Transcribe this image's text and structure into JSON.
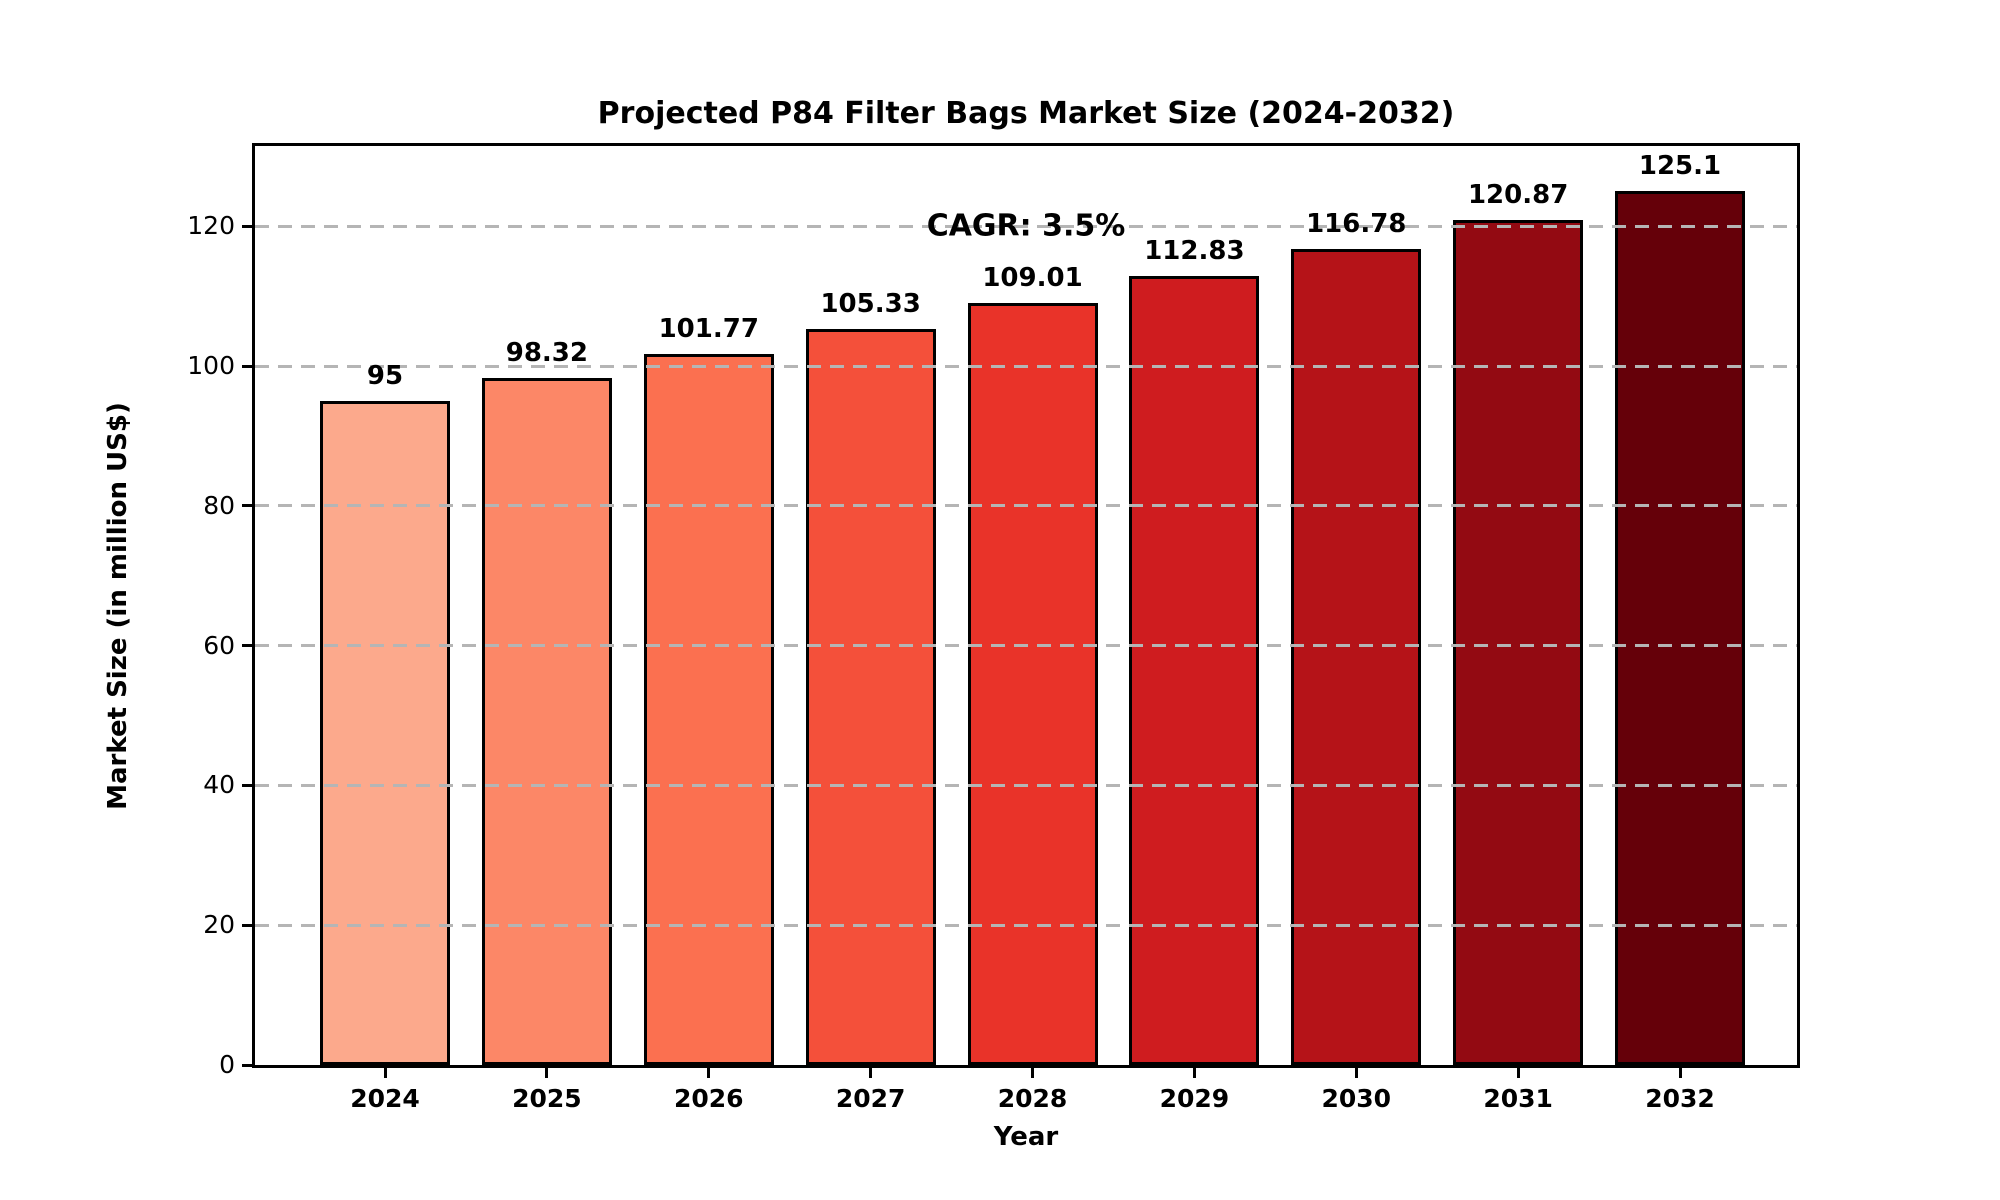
{
  "chart_data": {
    "type": "bar",
    "title": "Projected P84 Filter Bags Market Size (2024-2032)",
    "xlabel": "Year",
    "ylabel": "Market Size (in million US$)",
    "annotation": "CAGR: 3.5%",
    "categories": [
      "2024",
      "2025",
      "2026",
      "2027",
      "2028",
      "2029",
      "2030",
      "2031",
      "2032"
    ],
    "values": [
      95,
      98.32,
      101.77,
      105.33,
      109.01,
      112.83,
      116.78,
      120.87,
      125.1
    ],
    "value_labels": [
      "95",
      "98.32",
      "101.77",
      "105.33",
      "109.01",
      "112.83",
      "116.78",
      "120.87",
      "125.1"
    ],
    "bar_colors": [
      "#fca98c",
      "#fc8767",
      "#fb7050",
      "#f4503a",
      "#e93329",
      "#cf1c1f",
      "#b51318",
      "#930a12",
      "#650009"
    ],
    "bar_edge_color": "#000000",
    "yticks": [
      0,
      20,
      40,
      60,
      80,
      100,
      120
    ],
    "ylim": [
      0,
      131.5
    ],
    "grid": "horizontal-dashed",
    "grid_color": "#b5b5b5",
    "legend": "none",
    "background_color": "#ffffff"
  }
}
